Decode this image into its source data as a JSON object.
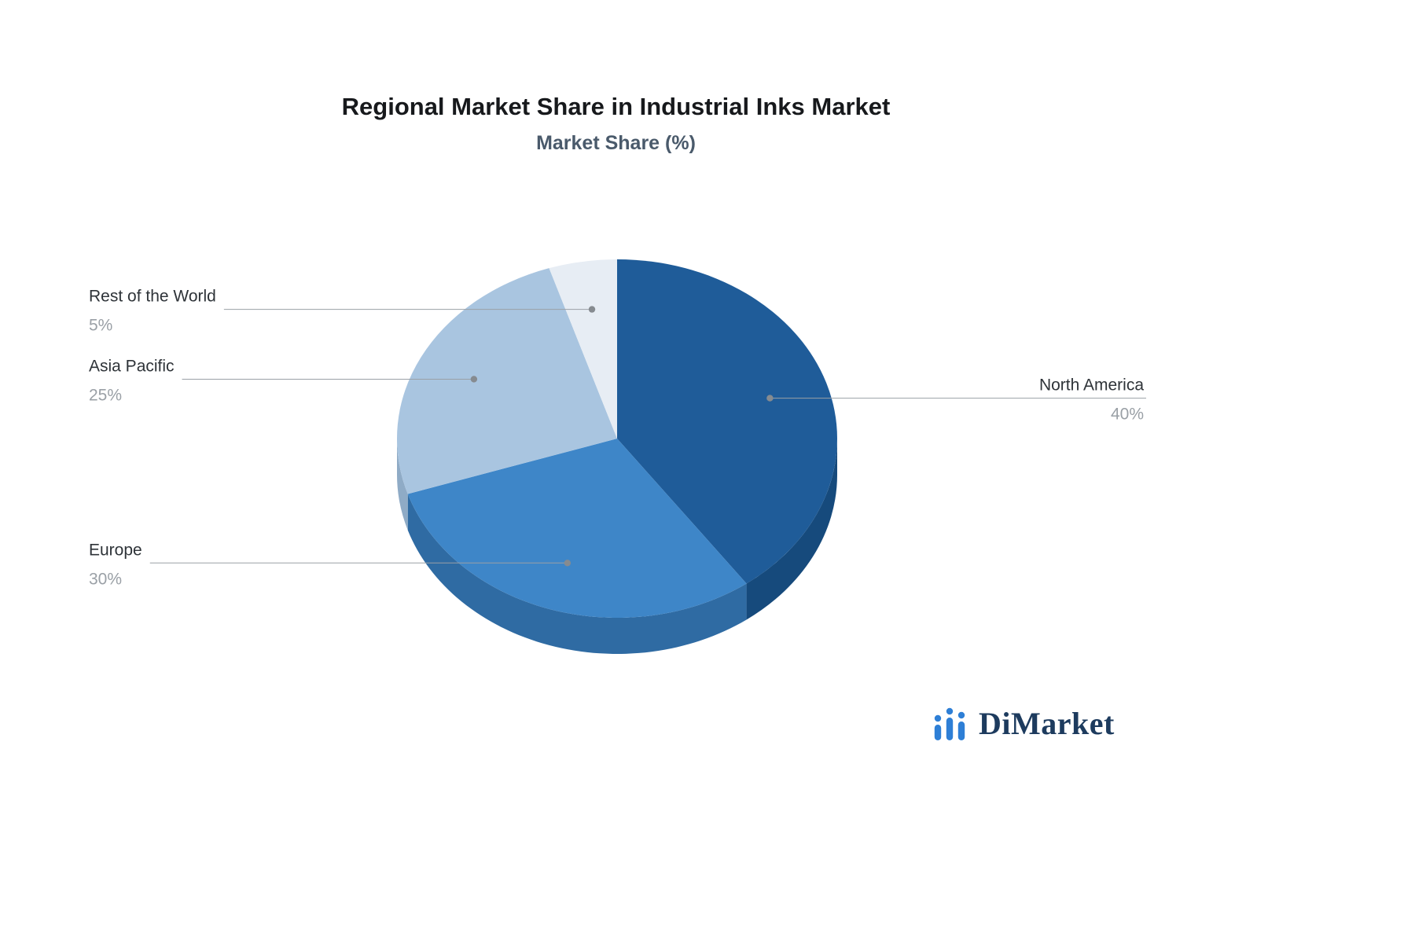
{
  "page": {
    "background": "#ffffff"
  },
  "chart_data": {
    "type": "pie",
    "title": "Regional Market Share in Industrial Inks Market",
    "subtitle": "Market Share (%)",
    "unit": "%",
    "effect": "3d",
    "direction": "clockwise",
    "start_angle_deg": 0,
    "legend": "none",
    "categories": [
      "North America",
      "Europe",
      "Asia Pacific",
      "Rest of the World"
    ],
    "values": [
      40,
      30,
      25,
      5
    ],
    "slices": [
      {
        "label": "North America",
        "value": 40,
        "display_value": "40%",
        "color": "#1F5C99",
        "side_color": "#164A7C"
      },
      {
        "label": "Europe",
        "value": 30,
        "display_value": "30%",
        "color": "#3E86C8",
        "side_color": "#2F6BA3"
      },
      {
        "label": "Asia Pacific",
        "value": 25,
        "display_value": "25%",
        "color": "#A9C5E0",
        "side_color": "#8FABC6"
      },
      {
        "label": "Rest of the World",
        "value": 5,
        "display_value": "5%",
        "color": "#E7EDF4",
        "side_color": "#C9D4E2"
      }
    ],
    "title_color": "#17191C",
    "subtitle_color": "#4A5A6B",
    "label_color": "#2E3338",
    "value_color": "#9AA0A6",
    "leader_line_color": "#9AA0A6",
    "leader_dot_color": "#868B90"
  },
  "logo": {
    "text": "DiMarket",
    "icon": "bar-chart-icon",
    "icon_color": "#2E7FD6",
    "text_color": "#1D3B5E"
  }
}
